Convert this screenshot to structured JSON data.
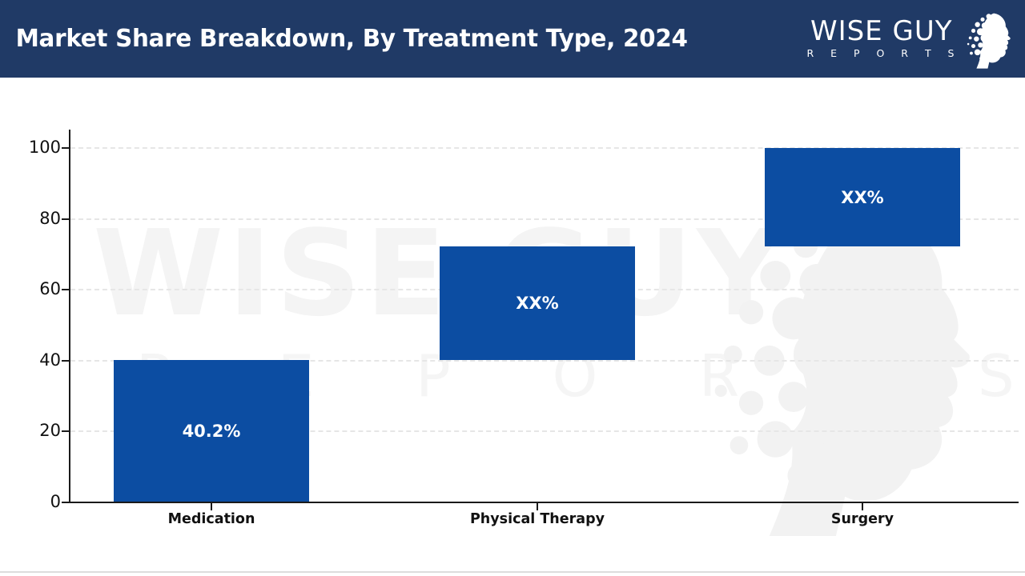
{
  "header": {
    "title": "Market Share Breakdown, By Treatment Type, 2024",
    "logo": {
      "line1": "WISE GUY",
      "line2": "R E P O R T S"
    }
  },
  "watermark": {
    "line1": "WISE GUY",
    "line2": "R E P O R T S"
  },
  "chart_data": {
    "type": "bar",
    "variant": "stacked-waterfall",
    "title": "Market Share Breakdown, By Treatment Type, 2024",
    "categories": [
      "Medication",
      "Physical Therapy",
      "Surgery"
    ],
    "series": [
      {
        "name": "Medication",
        "start": 0,
        "end": 40.2,
        "value": 40.2,
        "label": "40.2%"
      },
      {
        "name": "Physical Therapy",
        "start": 40.2,
        "end": 72.2,
        "value": 32.0,
        "label": "XX%"
      },
      {
        "name": "Surgery",
        "start": 72.2,
        "end": 100,
        "value": 27.8,
        "label": "XX%"
      }
    ],
    "xlabel": "",
    "ylabel": "",
    "yticks": [
      0,
      20,
      40,
      60,
      80,
      100
    ],
    "ylim": [
      0,
      105
    ],
    "grid": {
      "horizontal": true,
      "style": "dashed"
    },
    "legend": "none",
    "colors": {
      "bar": "#0c4da2",
      "bar_label": "#ffffff",
      "axis": "#1a1a1a",
      "gridline": "#e6e6e6",
      "header_bg": "#203a66",
      "watermark": "#f4f4f4"
    }
  }
}
